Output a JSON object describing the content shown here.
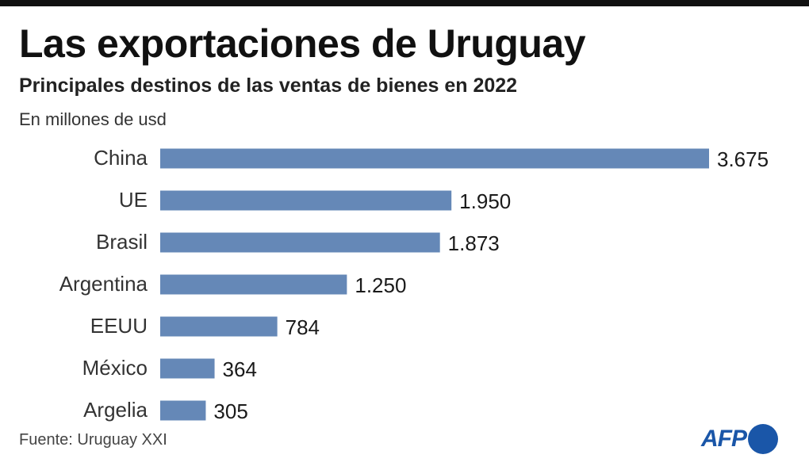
{
  "header": {
    "title": "Las exportaciones de Uruguay",
    "subtitle": "Principales destinos de las ventas de bienes en 2022",
    "unit": "En millones de usd"
  },
  "footer": {
    "source": "Fuente: Uruguay XXI",
    "logo_text": "AFP"
  },
  "colors": {
    "bar": "#6588b7",
    "brand": "#1a56a8"
  },
  "chart_data": {
    "type": "bar",
    "orientation": "horizontal",
    "title": "Las exportaciones de Uruguay",
    "subtitle": "Principales destinos de las ventas de bienes en 2022",
    "ylabel": "En millones de usd",
    "categories": [
      "China",
      "UE",
      "Brasil",
      "Argentina",
      "EEUU",
      "México",
      "Argelia"
    ],
    "values": [
      3675,
      1950,
      1873,
      1250,
      784,
      364,
      305
    ],
    "value_labels": [
      "3.675",
      "1.950",
      "1.873",
      "1.250",
      "784",
      "364",
      "305"
    ],
    "xlim": [
      0,
      3675
    ],
    "grid": false,
    "legend": "none"
  }
}
